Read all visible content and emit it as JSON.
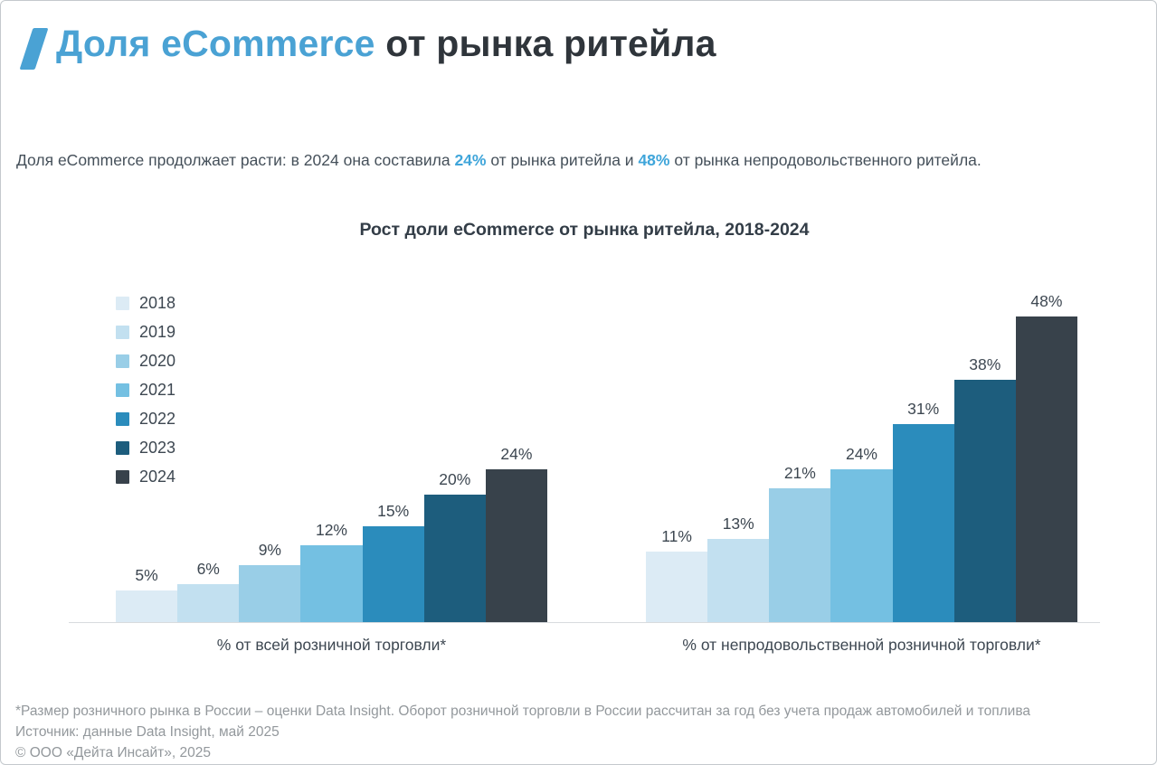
{
  "page": {
    "title_accent": "Доля eCommerce",
    "title_rest": " от рынка ритейла",
    "subtitle": {
      "part1": "Доля eCommerce продолжает расти: в 2024 она составила ",
      "value1": "24%",
      "part2": " от рынка ритейла и ",
      "value2": "48%",
      "part3": " от рынка непродовольственного ритейла."
    },
    "footer": {
      "note": "*Размер розничного рынка в России – оценки Data Insight. Оборот розничной торговли в России рассчитан за год без учета продаж автомобилей и топлива",
      "source": "Источник: данные Data Insight, май 2025",
      "copyright": "© ООО «Дейта Инсайт», 2025"
    },
    "accent_color": "#4aa2d4"
  },
  "chart_data": {
    "type": "bar",
    "title": "Рост доли eCommerce от рынка ритейла, 2018-2024",
    "legend_position": "top-left",
    "grid": false,
    "unit": "%",
    "ylim": [
      0,
      50
    ],
    "categories": [
      "2018",
      "2019",
      "2020",
      "2021",
      "2022",
      "2023",
      "2024"
    ],
    "colors": [
      "#dcebf5",
      "#c2e0f0",
      "#99cee7",
      "#74c0e2",
      "#2b8cbc",
      "#1d5d7d",
      "#38424b"
    ],
    "groups": [
      {
        "label": "% от всей розничной торговли*",
        "values": [
          5,
          6,
          9,
          12,
          15,
          20,
          24
        ]
      },
      {
        "label": "% от непродовольственной розничной торговли*",
        "values": [
          11,
          13,
          21,
          24,
          31,
          38,
          48
        ]
      }
    ]
  }
}
